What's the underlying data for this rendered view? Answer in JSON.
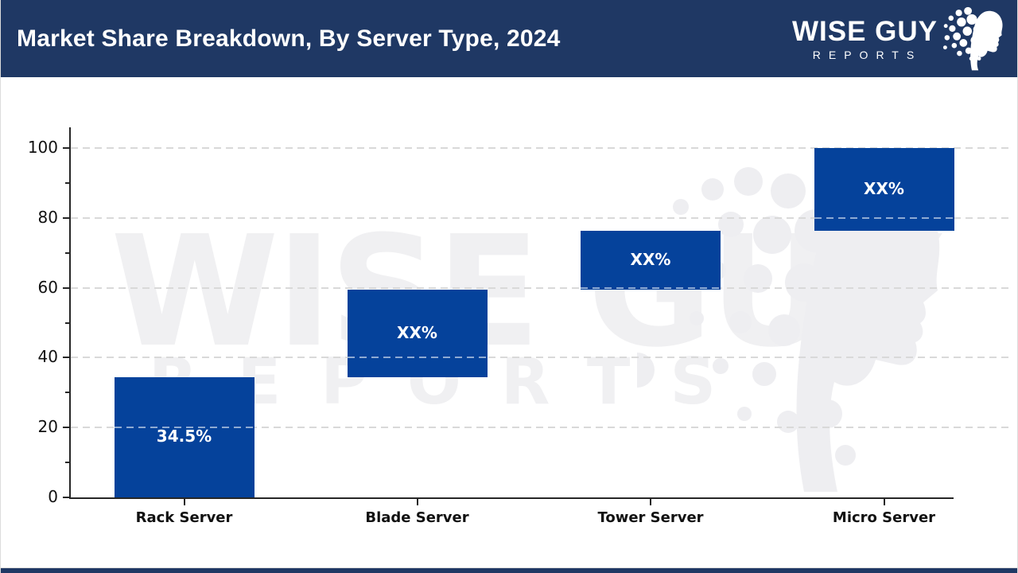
{
  "header": {
    "title": "Market Share Breakdown, By Server Type, 2024",
    "logo": {
      "line1": "WISE GUY",
      "line2": "REPORTS"
    }
  },
  "watermark": {
    "line1": "WISE GUY",
    "line2": "REPORTS"
  },
  "chart_data": {
    "type": "bar",
    "subtype": "waterfall",
    "title": "Market Share Breakdown, By Server Type, 2024",
    "categories": [
      "Rack Server",
      "Blade Server",
      "Tower Server",
      "Micro Server"
    ],
    "series": [
      {
        "name": "Rack Server",
        "start": 0,
        "end": 34.5,
        "value_label": "34.5%"
      },
      {
        "name": "Blade Server",
        "start": 34.5,
        "end": 59.5,
        "value_label": "XX%"
      },
      {
        "name": "Tower Server",
        "start": 59.5,
        "end": 76.3,
        "value_label": "XX%"
      },
      {
        "name": "Micro Server",
        "start": 76.3,
        "end": 100,
        "value_label": "XX%"
      }
    ],
    "xlabel": "",
    "ylabel": "",
    "ylim": [
      0,
      100
    ],
    "yticks": [
      0,
      20,
      40,
      60,
      80,
      100
    ],
    "minor_ytick_step": 10,
    "grid": "horizontal-dashed",
    "legend": "none",
    "bar_color": "#05429b",
    "bar_label_color": "#ffffff"
  },
  "colors": {
    "header_bg": "#1f3864",
    "footer_bg": "#1f3864",
    "bar": "#05429b",
    "grid": "#d9d9d9",
    "axis": "#262626",
    "watermark": "#f0f0f2",
    "title_text": "#ffffff"
  }
}
